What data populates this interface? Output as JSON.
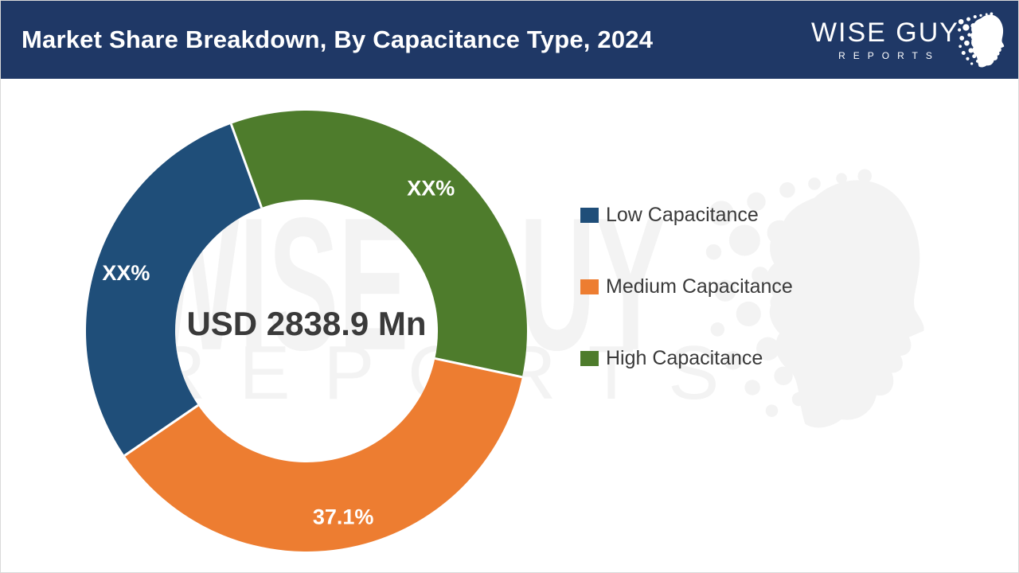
{
  "header": {
    "title": "Market Share Breakdown, By Capacitance Type, 2024",
    "logo": {
      "wordmark": "WISE GUY",
      "subtext": "REPORTS"
    }
  },
  "watermark": {
    "wordmark": "WISE GUY",
    "subtext": "REPORTS"
  },
  "chart_data": {
    "type": "pie",
    "variant": "donut",
    "title": "Market Share Breakdown, By Capacitance Type, 2024",
    "center_label": "USD 2838.9 Mn",
    "center_value_usd_mn": 2838.9,
    "start_angle_deg": -20,
    "legend_position": "right",
    "series": [
      {
        "name": "High Capacitance",
        "display_label": "XX%",
        "value_masked": true,
        "value": 33.9,
        "color": "#4e7c2c"
      },
      {
        "name": "Medium Capacitance",
        "display_label": "37.1%",
        "value_masked": false,
        "value": 37.1,
        "color": "#ed7d31"
      },
      {
        "name": "Low Capacitance",
        "display_label": "XX%",
        "value_masked": true,
        "value": 29.0,
        "color": "#1f4e79"
      }
    ]
  },
  "legend": {
    "items": [
      {
        "label": "Low Capacitance",
        "color": "#1f4e79"
      },
      {
        "label": "Medium Capacitance",
        "color": "#ed7d31"
      },
      {
        "label": "High Capacitance",
        "color": "#4e7c2c"
      }
    ]
  }
}
